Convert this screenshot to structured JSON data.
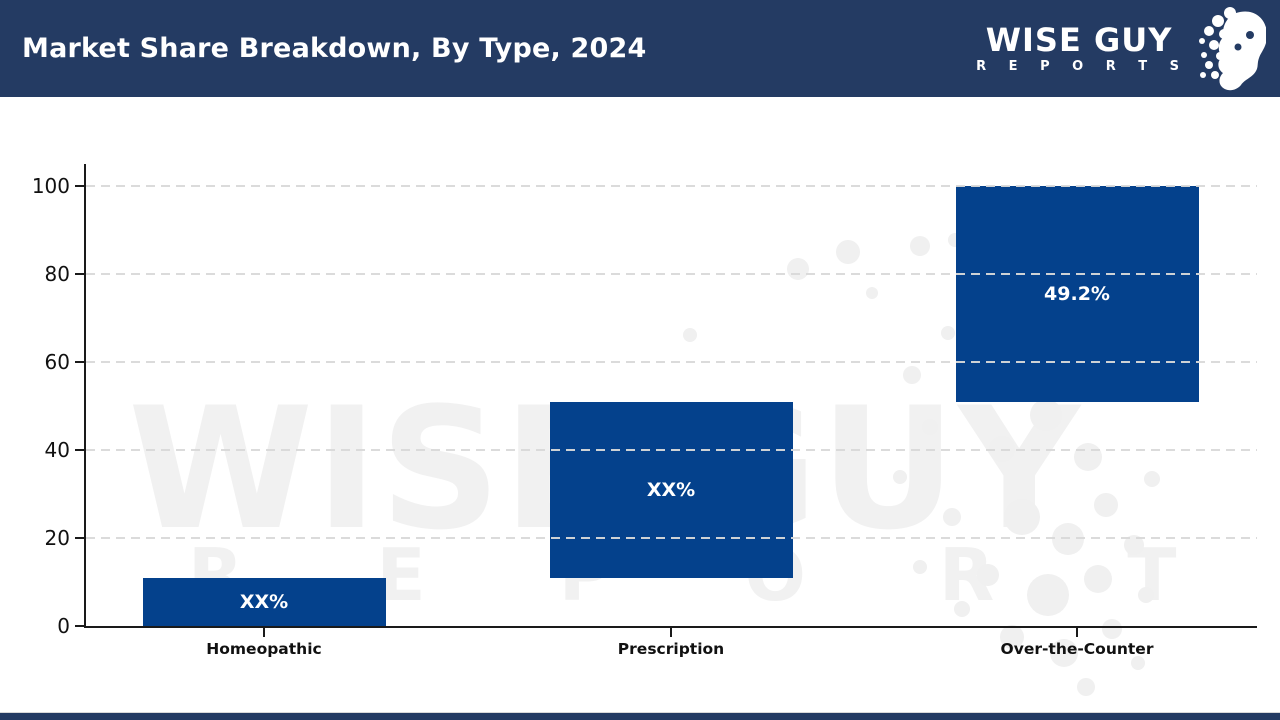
{
  "header": {
    "title": "Market Share Breakdown, By Type, 2024",
    "logo": {
      "line1": "WISE GUY",
      "line2": "R E P O R T S"
    }
  },
  "watermark": {
    "line1": "WISE GUY",
    "line2": "R E P O R T S"
  },
  "chart_data": {
    "type": "bar",
    "subtype": "waterfall",
    "title": "Market Share Breakdown, By Type, 2024",
    "categories": [
      "Homeopathic",
      "Prescription",
      "Over-the-Counter"
    ],
    "segments": [
      {
        "category": "Homeopathic",
        "start": 0,
        "end": 10.8,
        "label": "XX%"
      },
      {
        "category": "Prescription",
        "start": 10.8,
        "end": 50.8,
        "label": "XX%"
      },
      {
        "category": "Over-the-Counter",
        "start": 50.8,
        "end": 100,
        "label": "49.2%"
      }
    ],
    "ylim": [
      0,
      100
    ],
    "yticks": [
      0,
      20,
      40,
      60,
      80,
      100
    ],
    "grid": {
      "axis": "y",
      "style": "dashed",
      "color": "#d9d9d9"
    },
    "legend": "none",
    "bar_color": "#04418C"
  },
  "colors": {
    "header_bg": "#243B63",
    "footer_bg": "#243B63",
    "bar": "#04418C",
    "gridline": "#d9d9d9",
    "axis": "#1a1a1a",
    "watermark": "#f1f1f1"
  }
}
